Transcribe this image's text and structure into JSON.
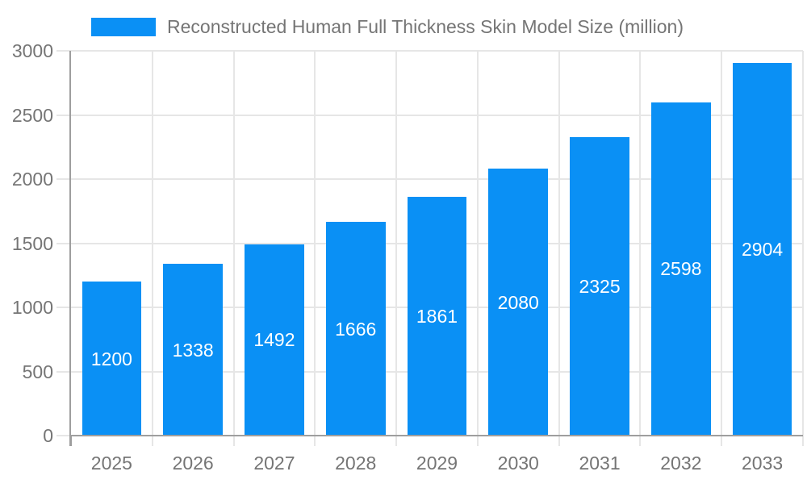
{
  "chart_data": {
    "type": "bar",
    "title": "Reconstructed Human Full Thickness Skin Model Size (million)",
    "categories": [
      "2025",
      "2026",
      "2027",
      "2028",
      "2029",
      "2030",
      "2031",
      "2032",
      "2033"
    ],
    "values": [
      1200,
      1338,
      1492,
      1666,
      1861,
      2080,
      2325,
      2598,
      2904
    ],
    "xlabel": "",
    "ylabel": "",
    "ylim": [
      0,
      3000
    ],
    "yticks": [
      0,
      500,
      1000,
      1500,
      2000,
      2500,
      3000
    ],
    "grid": true,
    "legend_position": "top-left",
    "bar_color": "#0a90f5",
    "bar_label_color": "#ffffff",
    "axis_text_color": "#757575",
    "gridline_color": "#e6e6e6",
    "axis_line_color": "#9e9e9e"
  }
}
